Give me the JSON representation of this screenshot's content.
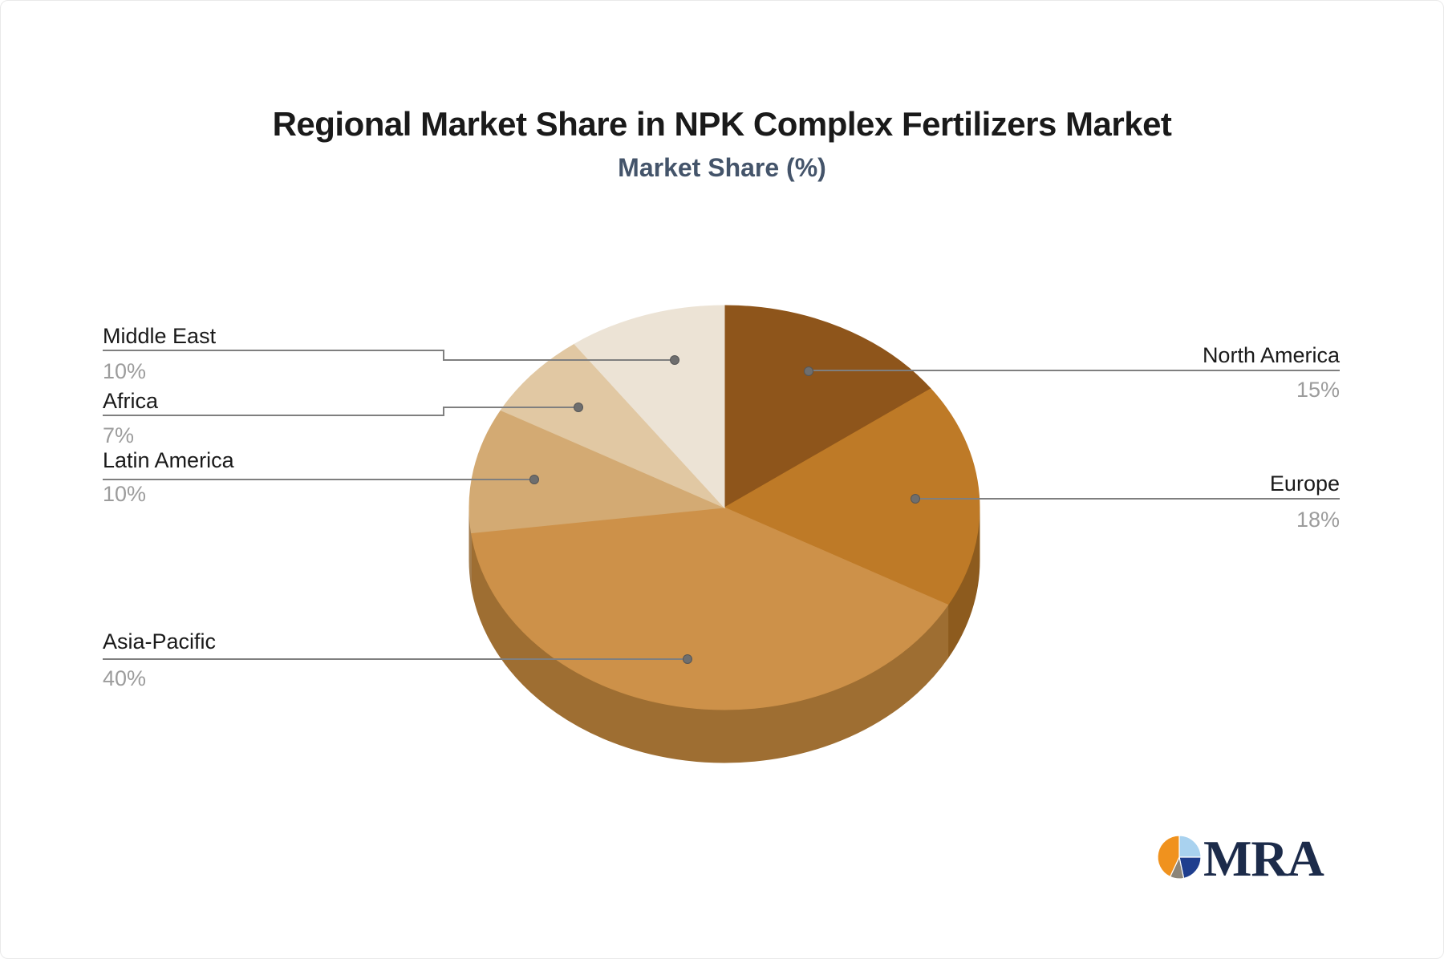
{
  "header": {
    "title": "Regional Market Share in NPK Complex Fertilizers Market",
    "subtitle": "Market Share (%)"
  },
  "chart_data": {
    "type": "pie",
    "title": "Regional Market Share in NPK Complex Fertilizers Market",
    "subtitle": "Market Share (%)",
    "unit": "%",
    "effect": "3d",
    "start_angle_deg": 0,
    "direction": "clockwise",
    "legend_position": "callout-labels",
    "segments": [
      {
        "label": "North America",
        "value": 15,
        "display": "15%",
        "color": "#8E551B",
        "side_color": "#6F4214"
      },
      {
        "label": "Europe",
        "value": 18,
        "display": "18%",
        "color": "#BE7A27",
        "side_color": "#8D5B1E"
      },
      {
        "label": "Asia-Pacific",
        "value": 40,
        "display": "40%",
        "color": "#CD9149",
        "side_color": "#9E6E32"
      },
      {
        "label": "Latin America",
        "value": 10,
        "display": "10%",
        "color": "#D3AA73",
        "side_color": "#A37D4E"
      },
      {
        "label": "Africa",
        "value": 7,
        "display": "7%",
        "color": "#E1C8A3",
        "side_color": "#B29A77"
      },
      {
        "label": "Middle East",
        "value": 10,
        "display": "10%",
        "color": "#ECE3D5",
        "side_color": "#BDB2A3"
      }
    ],
    "callout_style": {
      "line_color": "#7f7f7f",
      "dot_color": "#6e6e6e",
      "name_color": "#1a1a1a",
      "value_color": "#9c9c9c"
    }
  },
  "logo": {
    "text": "MRA",
    "text_color": "#1c2b4a",
    "mark_colors": {
      "orange": "#F0921E",
      "light_blue": "#A9D2EF",
      "navy": "#1F3E8E",
      "gray": "#8C8579"
    }
  }
}
